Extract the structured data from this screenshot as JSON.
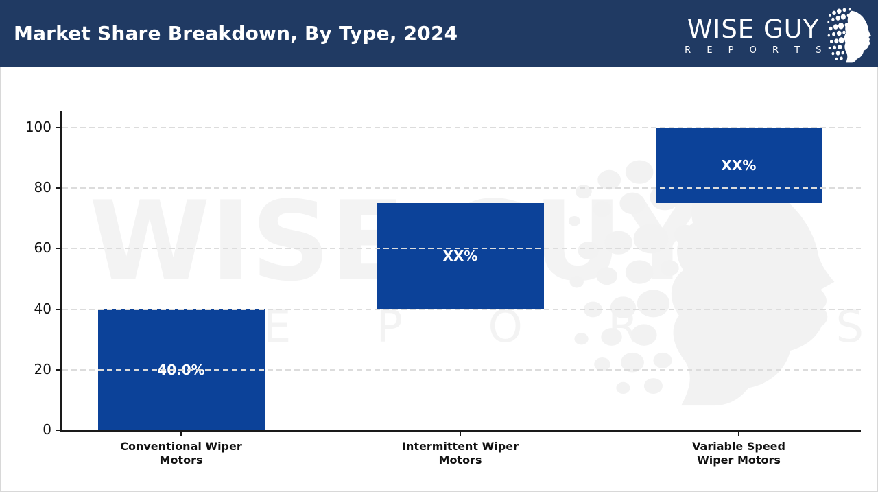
{
  "header": {
    "title": "Market Share Breakdown, By Type, 2024",
    "brand": {
      "name_top": "WISE GUY",
      "name_bottom": "R E P O R T S"
    }
  },
  "watermark": {
    "big_text": "WISE GUY",
    "letters_text": "R E P O R T S"
  },
  "chart_data": {
    "type": "bar",
    "variant": "waterfall",
    "title": "Market Share Breakdown, By Type, 2024",
    "categories": [
      "Conventional Wiper\nMotors",
      "Intermittent Wiper\nMotors",
      "Variable Speed\nWiper Motors"
    ],
    "segments": [
      {
        "category": "Conventional Wiper Motors",
        "start": 0,
        "end": 40,
        "label": "40.0%"
      },
      {
        "category": "Intermittent Wiper Motors",
        "start": 40,
        "end": 75,
        "label": "XX%"
      },
      {
        "category": "Variable Speed Wiper Motors",
        "start": 75,
        "end": 100,
        "label": "XX%"
      }
    ],
    "xlabel": "",
    "ylabel": "",
    "ylim": [
      0,
      100
    ],
    "yticks": [
      0,
      20,
      40,
      60,
      80,
      100
    ],
    "grid": "dashed-horizontal",
    "legend": "none",
    "bar_color": "#0c4299",
    "bar_label_color": "#ffffff"
  },
  "colors": {
    "header_bg": "#203a63",
    "bar": "#0c4299",
    "watermark": "#f3f3f3",
    "grid": "#dcdcdc",
    "axis": "#1a1a1a"
  }
}
